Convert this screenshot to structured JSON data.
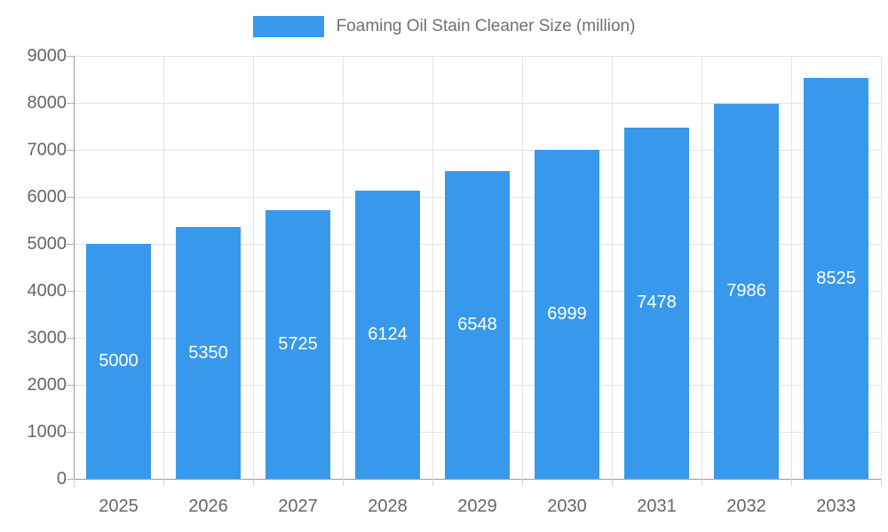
{
  "chart_data": {
    "type": "bar",
    "title": "Foaming Oil Stain Cleaner Size (million)",
    "legend_position": "top",
    "categories": [
      "2025",
      "2026",
      "2027",
      "2028",
      "2029",
      "2030",
      "2031",
      "2032",
      "2033"
    ],
    "values": [
      5000,
      5350,
      5725,
      6124,
      6548,
      6999,
      7478,
      7986,
      8525
    ],
    "value_labels": [
      "5000",
      "5350",
      "5725",
      "6124",
      "6548",
      "6999",
      "7478",
      "7986",
      "8525"
    ],
    "xlabel": "",
    "ylabel": "",
    "ylim": [
      0,
      9000
    ],
    "y_tick_step": 1000,
    "y_ticks": [
      0,
      1000,
      2000,
      3000,
      4000,
      5000,
      6000,
      7000,
      8000,
      9000
    ],
    "grid": true,
    "colors": {
      "bar": "#3899EC",
      "value_label": "#ffffff",
      "axis_text": "#666666",
      "legend_text": "#707070",
      "gridline": "#e3e3e3",
      "axis_line": "#9a9a9a"
    }
  }
}
